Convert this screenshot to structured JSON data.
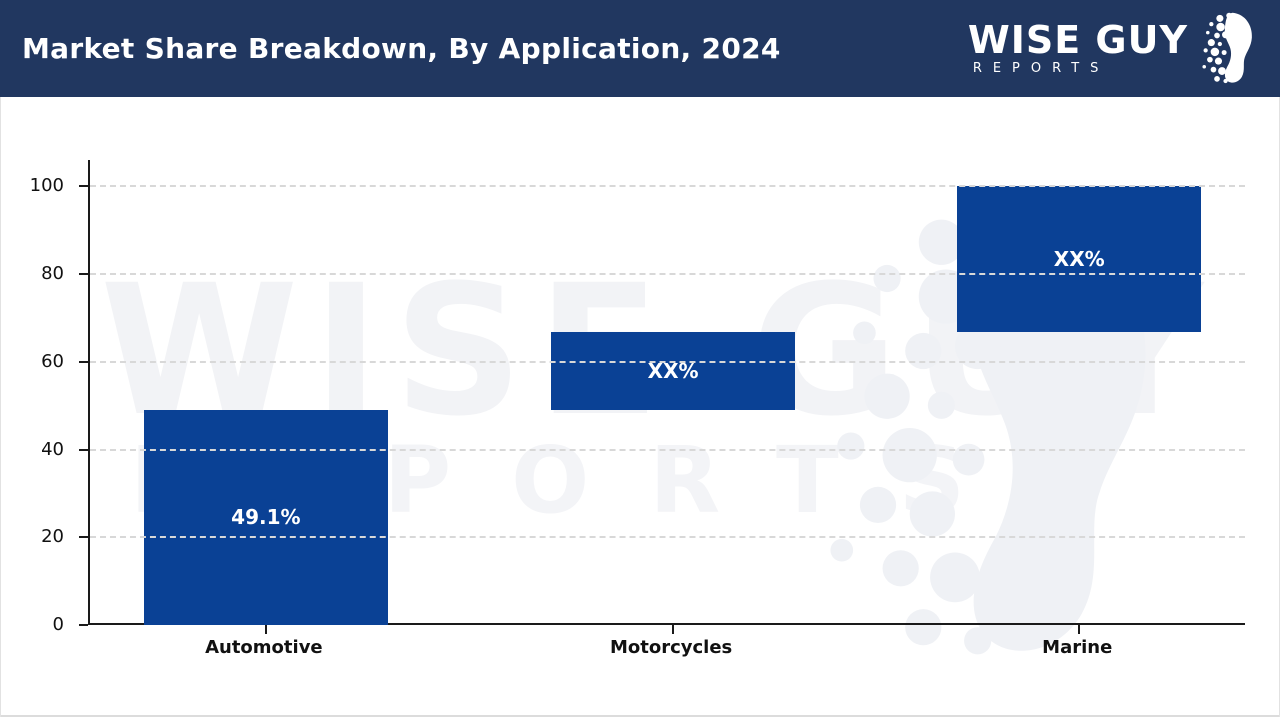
{
  "header": {
    "title": "Market Share Breakdown, By Application, 2024",
    "logo": {
      "line1": "WISE GUY",
      "line2": "REPORTS"
    }
  },
  "watermark": {
    "line1": "WISE GUY",
    "line2": "REPORTS"
  },
  "colors": {
    "header_bg": "#213760",
    "bar": "#0a4195",
    "bar_label": "#ffffff",
    "grid": "#d8d8d8",
    "axis": "#1a1a1a",
    "watermark": "#f2f3f6"
  },
  "chart_data": {
    "type": "bar",
    "subtype": "floating-waterfall-segments",
    "title": "Market Share Breakdown, By Application, 2024",
    "categories": [
      "Automotive",
      "Motorcycles",
      "Marine"
    ],
    "segments": [
      {
        "category": "Automotive",
        "from": 0,
        "to": 49.1,
        "label": "49.1%"
      },
      {
        "category": "Motorcycles",
        "from": 49.1,
        "to": 66.7,
        "label": "XX%"
      },
      {
        "category": "Marine",
        "from": 66.7,
        "to": 100,
        "label": "XX%"
      }
    ],
    "yticks": [
      0,
      20,
      40,
      60,
      80,
      100
    ],
    "ylim": [
      0,
      106
    ],
    "xlabel": "",
    "ylabel": "",
    "grid": "dashed-horizontal-above-bars",
    "legend": "none",
    "bar_color": "#0a4195",
    "bar_label_color": "#ffffff"
  }
}
